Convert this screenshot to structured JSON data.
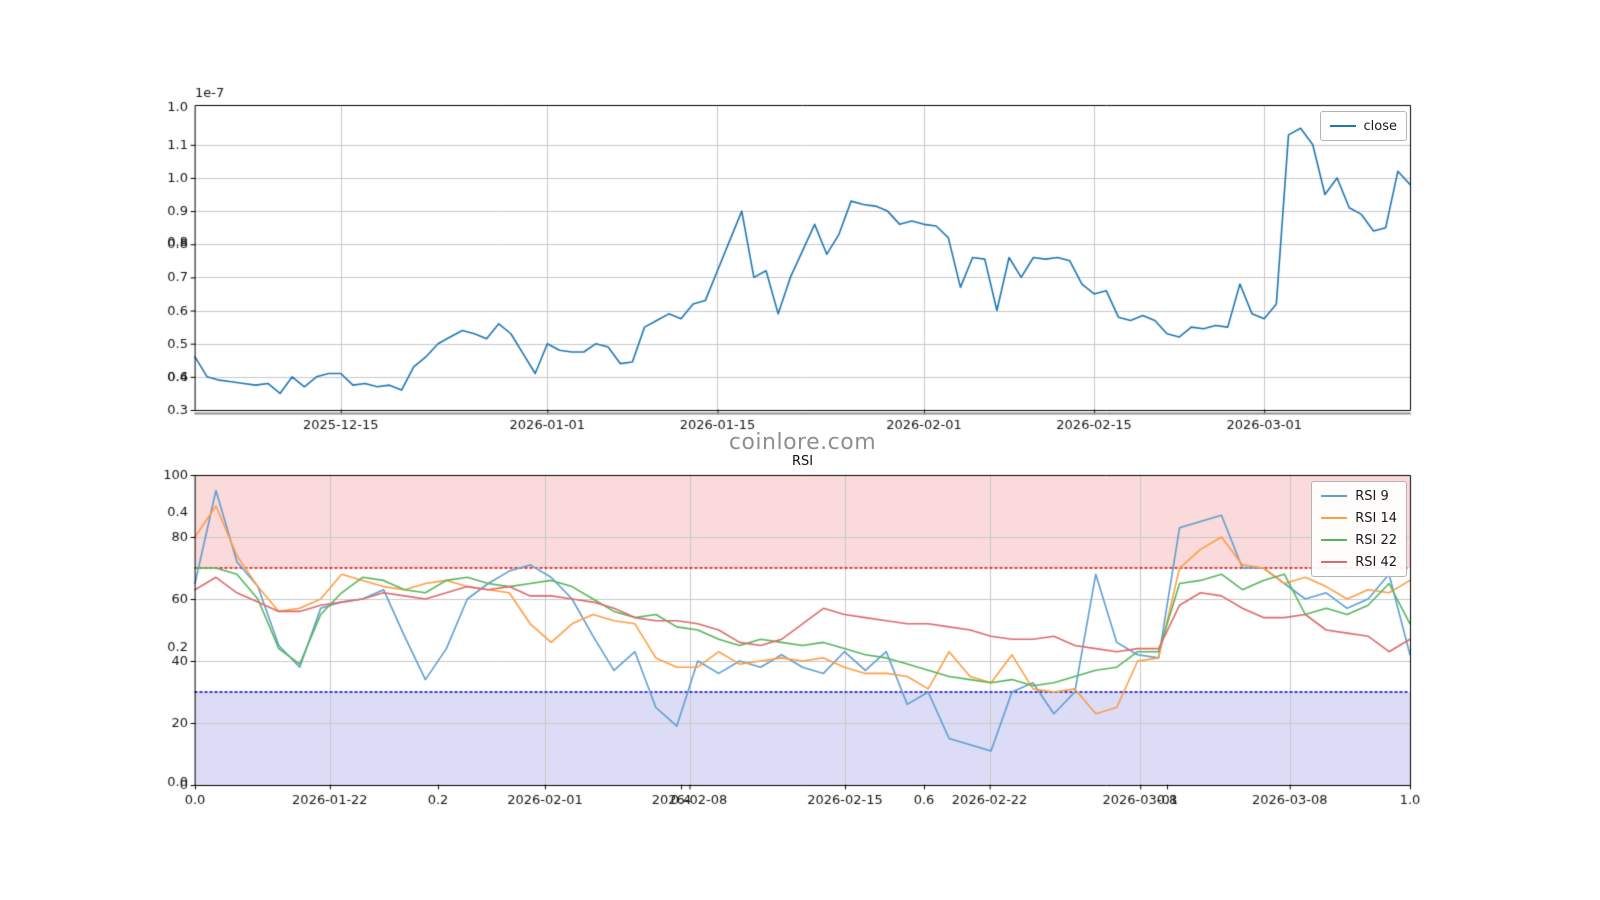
{
  "watermark": {
    "text": "coinlore.com",
    "color": "#7c7c7c"
  },
  "colors": {
    "grid": "#c9c9c9",
    "spine": "#000000",
    "tick_text": "#151515",
    "sub_spine": "#8f8f8f"
  },
  "ghost_axis": {
    "left_labels": [
      "1.0",
      "0.8",
      "0.6",
      "0.4",
      "0.2",
      "0.0"
    ],
    "left_pos": [
      1.0,
      0.8,
      0.6,
      0.4,
      0.2,
      0.0
    ],
    "bottom_labels": [
      "0.0",
      "0.2",
      "0.4",
      "0.6",
      "0.8",
      "1.0"
    ],
    "bottom_pos": [
      0.0,
      0.2,
      0.4,
      0.6,
      0.8,
      1.0
    ]
  },
  "chart_data": [
    {
      "type": "line",
      "title": "",
      "offset_text": "1e-7",
      "ylim": [
        0.3,
        1.22
      ],
      "ytick_values": [
        0.3,
        0.4,
        0.5,
        0.6,
        0.7,
        0.8,
        0.9,
        1.0,
        1.1
      ],
      "ytick_labels": [
        "0.3",
        "0.4",
        "0.5",
        "0.6",
        "0.7",
        "0.8",
        "0.9",
        "1.0",
        "1.1"
      ],
      "xtick_pos": [
        0.12,
        0.29,
        0.43,
        0.6,
        0.74,
        0.88
      ],
      "xtick_labels": [
        "2025-12-15",
        "2026-01-01",
        "2026-01-15",
        "2026-02-01",
        "2026-02-15",
        "2026-03-01"
      ],
      "grid": true,
      "legend_position": "upper right",
      "series": [
        {
          "name": "close",
          "color": "#1f77b4",
          "values": [
            0.46,
            0.4,
            0.39,
            0.385,
            0.38,
            0.375,
            0.38,
            0.35,
            0.4,
            0.37,
            0.4,
            0.41,
            0.41,
            0.375,
            0.38,
            0.37,
            0.375,
            0.36,
            0.43,
            0.46,
            0.5,
            0.52,
            0.54,
            0.53,
            0.515,
            0.56,
            0.53,
            0.47,
            0.41,
            0.5,
            0.48,
            0.475,
            0.475,
            0.5,
            0.49,
            0.44,
            0.445,
            0.55,
            0.57,
            0.59,
            0.575,
            0.62,
            0.63,
            0.72,
            0.81,
            0.9,
            0.7,
            0.72,
            0.59,
            0.7,
            0.78,
            0.86,
            0.77,
            0.83,
            0.93,
            0.92,
            0.915,
            0.9,
            0.86,
            0.87,
            0.86,
            0.855,
            0.82,
            0.67,
            0.76,
            0.755,
            0.6,
            0.76,
            0.7,
            0.76,
            0.755,
            0.76,
            0.75,
            0.68,
            0.65,
            0.66,
            0.58,
            0.57,
            0.585,
            0.57,
            0.53,
            0.52,
            0.55,
            0.545,
            0.555,
            0.55,
            0.68,
            0.59,
            0.575,
            0.62,
            1.13,
            1.15,
            1.1,
            0.95,
            1.0,
            0.91,
            0.89,
            0.84,
            0.85,
            1.02,
            0.98
          ]
        }
      ]
    },
    {
      "type": "line",
      "title": "RSI",
      "ylim": [
        0,
        100
      ],
      "ytick_values": [
        0,
        20,
        40,
        60,
        80,
        100
      ],
      "ytick_labels": [
        "0",
        "20",
        "40",
        "60",
        "80",
        "100"
      ],
      "xtick_pos": [
        0.111,
        0.288,
        0.407,
        0.535,
        0.654,
        0.778,
        0.901
      ],
      "xtick_labels": [
        "2026-01-22",
        "2026-02-01",
        "2026-02-08",
        "2026-02-15",
        "2026-02-22",
        "2026-03-01",
        "2026-03-08"
      ],
      "grid": true,
      "legend_position": "upper right",
      "overbought": {
        "level": 70,
        "line_color": "#e00000",
        "fill_color": "#fadada"
      },
      "oversold": {
        "level": 30,
        "line_color": "#0000c0",
        "fill_color": "#dcdcf6"
      },
      "series": [
        {
          "name": "RSI 9",
          "color": "#5f9ed1",
          "values": [
            65,
            95,
            72,
            64,
            45,
            38,
            57,
            59,
            60,
            63,
            48,
            34,
            44,
            60,
            65,
            69,
            71,
            67,
            60,
            48,
            37,
            43,
            25,
            19,
            40,
            36,
            40,
            38,
            42,
            38,
            36,
            43,
            37,
            43,
            26,
            30,
            15,
            13,
            11,
            30,
            33,
            23,
            30,
            68,
            46,
            42,
            41,
            83,
            85,
            87,
            70,
            70,
            65,
            60,
            62,
            57,
            60,
            68,
            42
          ]
        },
        {
          "name": "RSI 14",
          "color": "#ff9d45",
          "values": [
            80,
            90,
            74,
            64,
            56,
            57,
            60,
            68,
            66,
            64,
            63,
            65,
            66,
            64,
            63,
            62,
            52,
            46,
            52,
            55,
            53,
            52,
            41,
            38,
            38,
            43,
            39,
            40,
            41,
            40,
            41,
            38,
            36,
            36,
            35,
            31,
            43,
            35,
            33,
            42,
            31,
            30,
            31,
            23,
            25,
            40,
            41,
            70,
            76,
            80,
            71,
            70,
            65,
            67,
            64,
            60,
            63,
            62,
            66
          ]
        },
        {
          "name": "RSI 22",
          "color": "#57b65b",
          "values": [
            70,
            70,
            68,
            60,
            44,
            39,
            55,
            62,
            67,
            66,
            63,
            62,
            66,
            67,
            65,
            64,
            65,
            66,
            64,
            60,
            56,
            54,
            55,
            51,
            50,
            47,
            45,
            47,
            46,
            45,
            46,
            44,
            42,
            41,
            39,
            37,
            35,
            34,
            33,
            34,
            32,
            33,
            35,
            37,
            38,
            43,
            43,
            65,
            66,
            68,
            63,
            66,
            68,
            55,
            57,
            55,
            58,
            65,
            52
          ]
        },
        {
          "name": "RSI 42",
          "color": "#dd6b6b",
          "values": [
            63,
            67,
            62,
            59,
            56,
            56,
            58,
            59,
            60,
            62,
            61,
            60,
            62,
            64,
            63,
            64,
            61,
            61,
            60,
            59,
            57,
            54,
            53,
            53,
            52,
            50,
            46,
            45,
            47,
            52,
            57,
            55,
            54,
            53,
            52,
            52,
            51,
            50,
            48,
            47,
            47,
            48,
            45,
            44,
            43,
            44,
            44,
            58,
            62,
            61,
            57,
            54,
            54,
            55,
            50,
            49,
            48,
            43,
            47
          ]
        }
      ]
    }
  ]
}
